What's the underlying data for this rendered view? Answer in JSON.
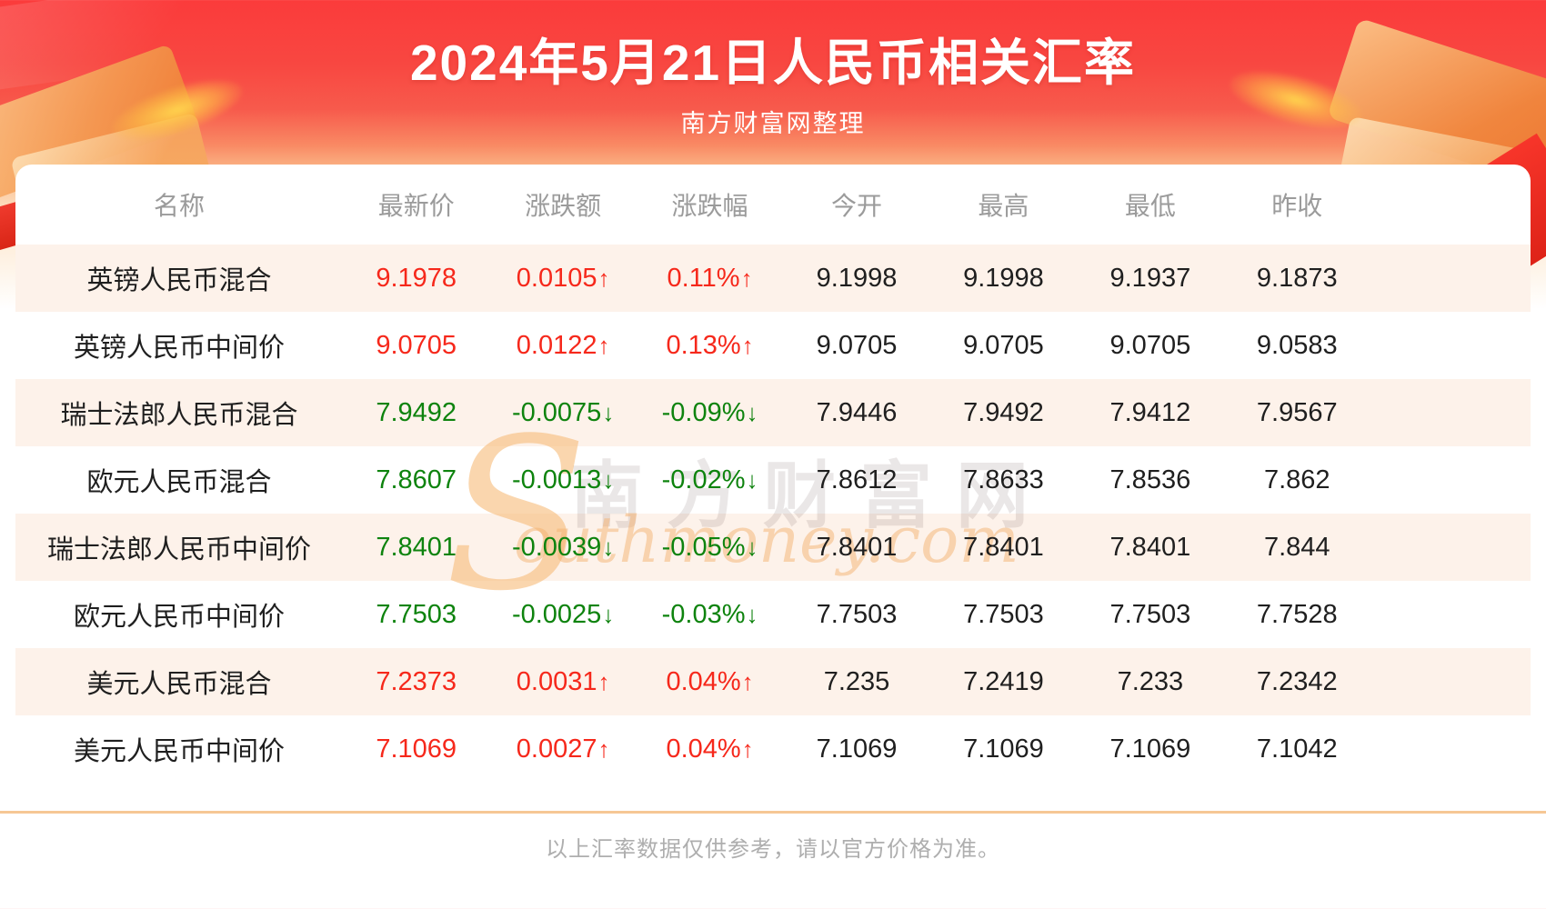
{
  "page": {
    "title": "2024年5月21日人民币相关汇率",
    "subtitle": "南方财富网整理",
    "footer_note": "以上汇率数据仅供参考，请以官方价格为准。"
  },
  "watermark": {
    "cn": "南方财富网",
    "en_initial": "S",
    "en_rest": "outhmoney.com"
  },
  "colors": {
    "up": "#f6281b",
    "down": "#0e830e",
    "banner_top": "#fa3a3c",
    "banner_fade": "#fbbc8c",
    "row_alt_bg": "#fdf2ea",
    "header_text": "#9b9b9b",
    "value_text": "#1f1f1f",
    "divider": "#f6c795",
    "footer_text": "#aeaeae"
  },
  "chart_data": {
    "type": "table",
    "title": "2024年5月21日人民币相关汇率",
    "subtitle": "南方财富网整理",
    "columns": [
      "名称",
      "最新价",
      "涨跌额",
      "涨跌幅",
      "今开",
      "最高",
      "最低",
      "昨收"
    ],
    "rows": [
      {
        "name": "英镑人民币混合",
        "latest": "9.1978",
        "change": "0.0105",
        "change_pct": "0.11%",
        "arrow": "↑",
        "direction": "up",
        "open": "9.1998",
        "high": "9.1998",
        "low": "9.1937",
        "prev_close": "9.1873"
      },
      {
        "name": "英镑人民币中间价",
        "latest": "9.0705",
        "change": "0.0122",
        "change_pct": "0.13%",
        "arrow": "↑",
        "direction": "up",
        "open": "9.0705",
        "high": "9.0705",
        "low": "9.0705",
        "prev_close": "9.0583"
      },
      {
        "name": "瑞士法郎人民币混合",
        "latest": "7.9492",
        "change": "-0.0075",
        "change_pct": "-0.09%",
        "arrow": "↓",
        "direction": "down",
        "open": "7.9446",
        "high": "7.9492",
        "low": "7.9412",
        "prev_close": "7.9567"
      },
      {
        "name": "欧元人民币混合",
        "latest": "7.8607",
        "change": "-0.0013",
        "change_pct": "-0.02%",
        "arrow": "↓",
        "direction": "down",
        "open": "7.8612",
        "high": "7.8633",
        "low": "7.8536",
        "prev_close": "7.862"
      },
      {
        "name": "瑞士法郎人民币中间价",
        "latest": "7.8401",
        "change": "-0.0039",
        "change_pct": "-0.05%",
        "arrow": "↓",
        "direction": "down",
        "open": "7.8401",
        "high": "7.8401",
        "low": "7.8401",
        "prev_close": "7.844"
      },
      {
        "name": "欧元人民币中间价",
        "latest": "7.7503",
        "change": "-0.0025",
        "change_pct": "-0.03%",
        "arrow": "↓",
        "direction": "down",
        "open": "7.7503",
        "high": "7.7503",
        "low": "7.7503",
        "prev_close": "7.7528"
      },
      {
        "name": "美元人民币混合",
        "latest": "7.2373",
        "change": "0.0031",
        "change_pct": "0.04%",
        "arrow": "↑",
        "direction": "up",
        "open": "7.235",
        "high": "7.2419",
        "low": "7.233",
        "prev_close": "7.2342"
      },
      {
        "name": "美元人民币中间价",
        "latest": "7.1069",
        "change": "0.0027",
        "change_pct": "0.04%",
        "arrow": "↑",
        "direction": "up",
        "open": "7.1069",
        "high": "7.1069",
        "low": "7.1069",
        "prev_close": "7.1042"
      }
    ]
  }
}
